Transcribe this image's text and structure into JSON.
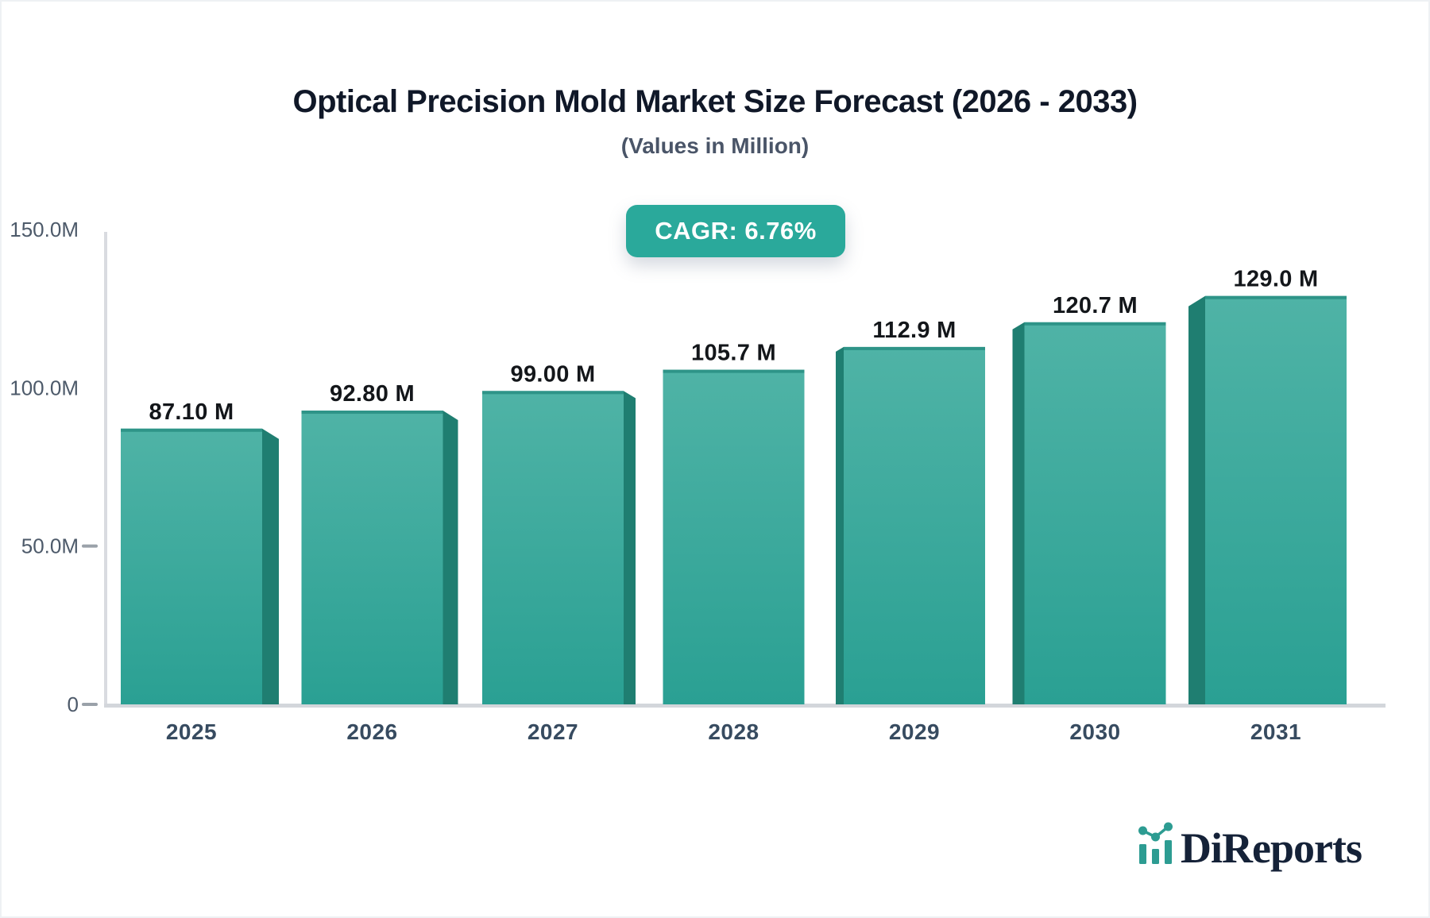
{
  "header": {
    "title": "Optical Precision Mold Market Size Forecast (2026 - 2033)",
    "subtitle": "(Values in Million)",
    "cagr_badge": "CAGR: 6.76%"
  },
  "logo": {
    "text": "DiReports",
    "icon": "mini-bar-chart-with-trend-dots"
  },
  "chart_data": {
    "type": "bar",
    "title": "Optical Precision Mold Market Size Forecast (2026 - 2033)",
    "subtitle": "(Values in Million)",
    "unit": "Million",
    "cagr_pct": 6.76,
    "categories": [
      "2025",
      "2026",
      "2027",
      "2028",
      "2029",
      "2030",
      "2031"
    ],
    "values": [
      87.1,
      92.8,
      99.0,
      105.7,
      112.9,
      120.7,
      129.0
    ],
    "value_labels": [
      "87.10 M",
      "92.80 M",
      "99.00 M",
      "105.7 M",
      "112.9 M",
      "120.7 M",
      "129.0 M"
    ],
    "ylim": [
      0,
      150
    ],
    "y_ticks": [
      {
        "label": "150.0M",
        "value": 150,
        "dash": false
      },
      {
        "label": "100.0M",
        "value": 100,
        "dash": false
      },
      {
        "label": "50.0M",
        "value": 50,
        "dash": true
      },
      {
        "label": "0",
        "value": 0,
        "dash": true
      }
    ],
    "grid": false,
    "legend": false,
    "bar_style": "3d-extruded, extrusion faces away from center bar",
    "colors": {
      "bar_face_top": "#4fb3a6",
      "bar_face_bottom": "#2aa093",
      "bar_top_edge": "#2e9488",
      "bar_side": "#1f7e71",
      "axis_line": "#d9dbe0",
      "baseline": "#d3d6db",
      "tick_dash": "#9aa1a9",
      "tick_text": "#4d5a6a",
      "category_text": "#374b60",
      "value_text": "#13161a",
      "badge_bg": "#2aa99b",
      "badge_text": "#ffffff",
      "title_text": "#101828",
      "subtitle_text": "#4a5568",
      "logo_navy": "#152238",
      "logo_teal": "#2d9c92"
    }
  }
}
